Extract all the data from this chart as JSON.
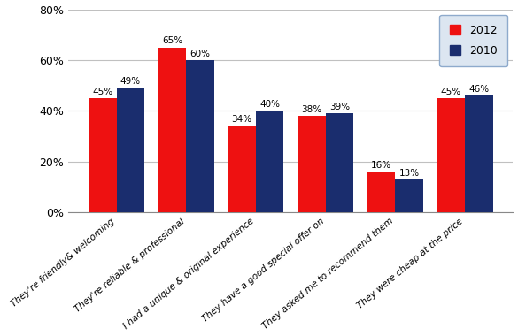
{
  "categories": [
    "They're friendly& welcoming",
    "They're reliable & professional",
    "I had a unique & original experience",
    "They have a good special offer on",
    "They asked me to recommend them",
    "They were cheap at the price"
  ],
  "values_2012": [
    45,
    65,
    34,
    38,
    16,
    45
  ],
  "values_2010": [
    49,
    60,
    40,
    39,
    13,
    46
  ],
  "color_2012": "#EE1111",
  "color_2010": "#1A2D6E",
  "ylim": [
    0,
    80
  ],
  "yticks": [
    0,
    20,
    40,
    60,
    80
  ],
  "ytick_labels": [
    "0%",
    "20%",
    "40%",
    "60%",
    "80%"
  ],
  "legend_labels": [
    "2012",
    "2010"
  ],
  "bar_width": 0.4,
  "background_color": "#FFFFFF",
  "plot_bg_color": "#FFFFFF",
  "grid_color": "#C0C0C0",
  "legend_bg": "#DCE6F1",
  "legend_edge": "#8EAACC"
}
